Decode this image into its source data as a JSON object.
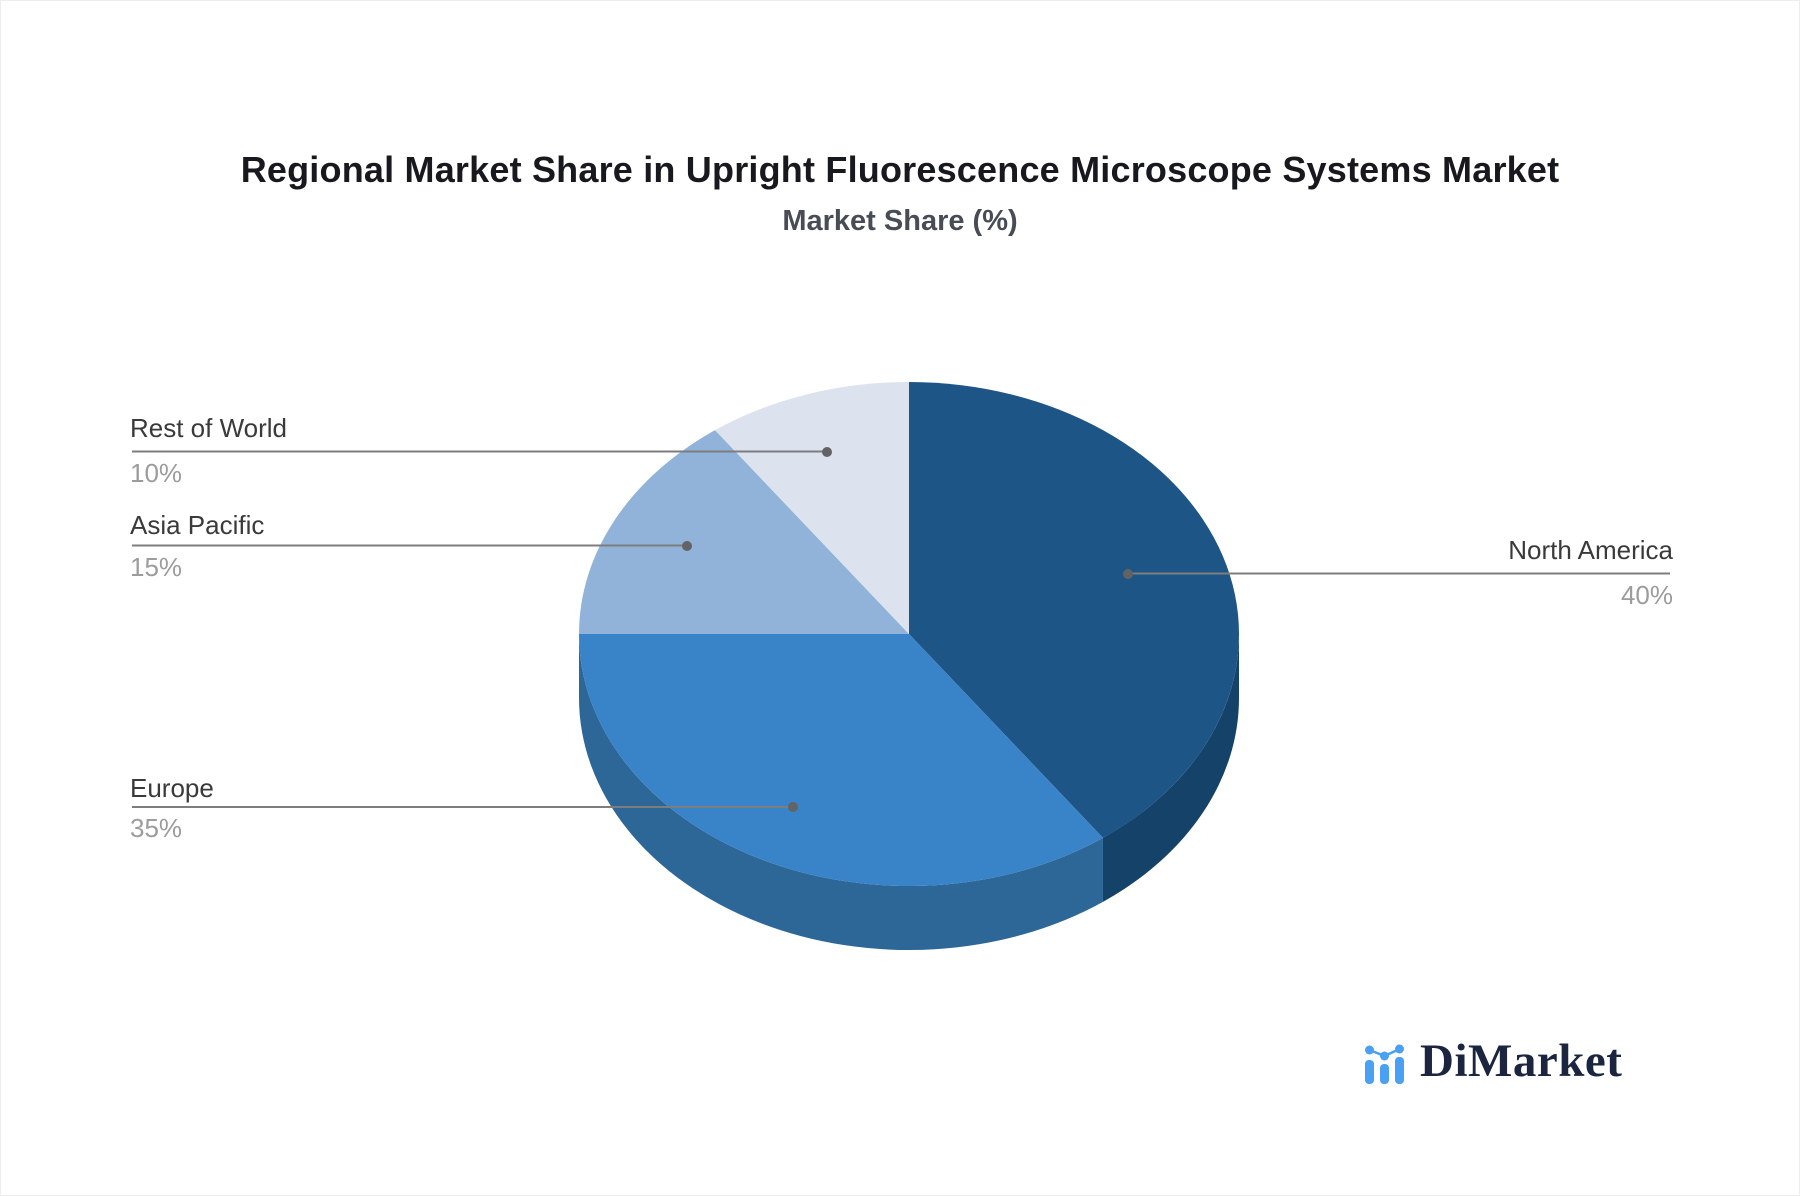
{
  "chart_data": {
    "type": "pie",
    "style": "3d",
    "title": "Regional Market Share in Upright Fluorescence Microscope Systems Market",
    "subtitle": "Market Share (%)",
    "categories": [
      "North America",
      "Europe",
      "Asia Pacific",
      "Rest of World"
    ],
    "values": [
      40,
      35,
      15,
      10
    ],
    "labels": [
      "40%",
      "35%",
      "15%",
      "10%"
    ],
    "direction": "clockwise",
    "start_angle_deg": 0,
    "legend": "none",
    "colors": {
      "north-america": "#1e5587",
      "north-america-side": "#154269",
      "europe": "#3984c8",
      "europe-side": "#2d6798",
      "asia-pacific": "#92b3d9",
      "rest-of-world": "#dce3ee",
      "leader_line": "#7d7d7d",
      "dot": "#636363"
    }
  },
  "logo": {
    "text": "DiMarket",
    "icon": "bar-chart-icon",
    "icon_color": "#4aa0f2",
    "text_color": "#1b2540"
  }
}
